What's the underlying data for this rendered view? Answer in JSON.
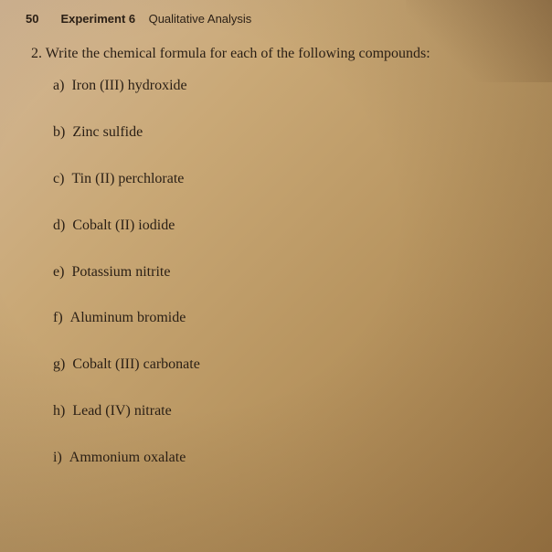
{
  "header": {
    "page_number": "50",
    "experiment_label": "Experiment 6",
    "experiment_title": "Qualitative Analysis"
  },
  "question": {
    "number": "2.",
    "text": "Write the chemical formula for each of the following compounds:"
  },
  "items": [
    {
      "label": "a)",
      "text": "Iron (III) hydroxide"
    },
    {
      "label": "b)",
      "text": "Zinc sulfide"
    },
    {
      "label": "c)",
      "text": "Tin (II) perchlorate"
    },
    {
      "label": "d)",
      "text": "Cobalt (II) iodide"
    },
    {
      "label": "e)",
      "text": "Potassium nitrite"
    },
    {
      "label": "f)",
      "text": "Aluminum bromide"
    },
    {
      "label": "g)",
      "text": "Cobalt (III) carbonate"
    },
    {
      "label": "h)",
      "text": "Lead (IV) nitrate"
    },
    {
      "label": "i)",
      "text": "Ammonium oxalate"
    }
  ],
  "style": {
    "background_gradient": [
      "#d4b896",
      "#c9a876",
      "#b89560",
      "#a67f4a"
    ],
    "text_color": "#2a1f15",
    "header_fontsize": 13,
    "body_fontsize": 16,
    "item_spacing": 30
  }
}
